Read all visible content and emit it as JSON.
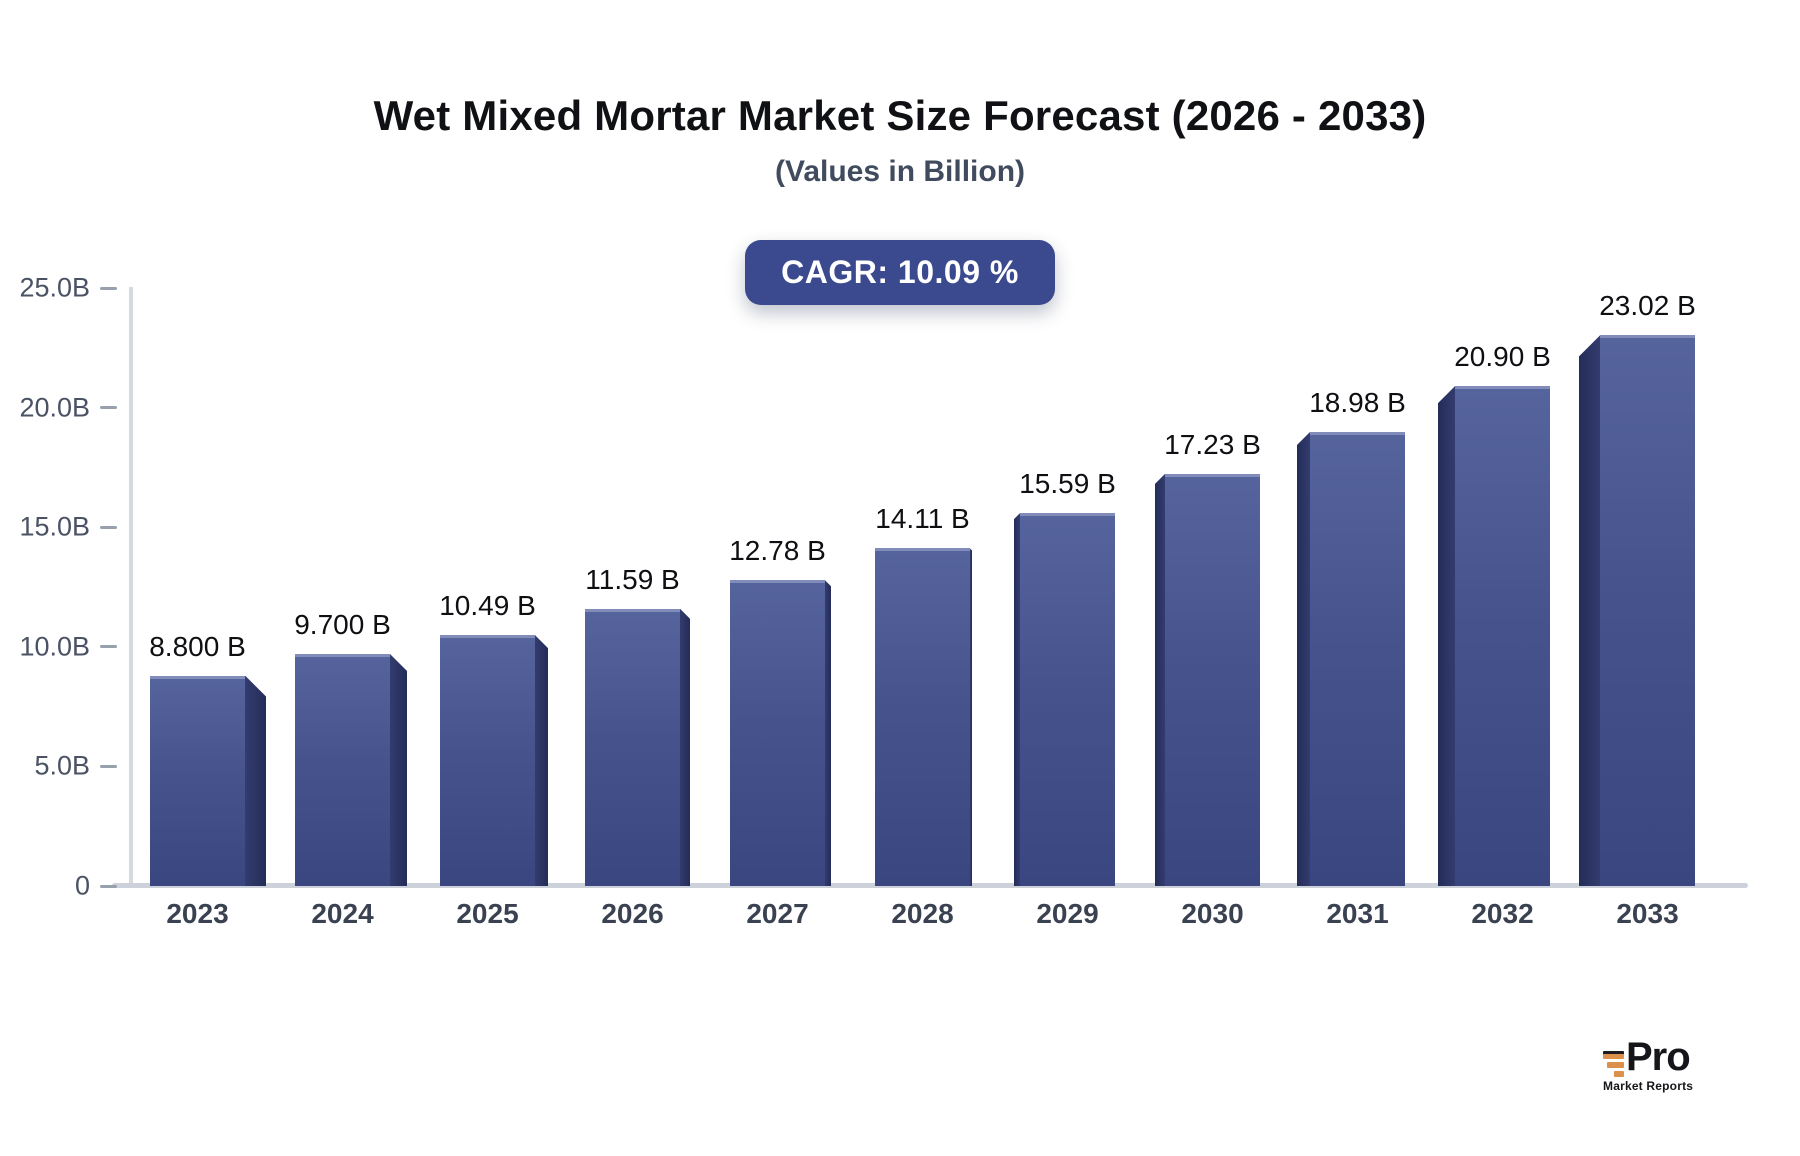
{
  "header": {
    "title": "Wet Mixed Mortar Market Size Forecast (2026 - 2033)",
    "subtitle": "(Values in Billion)",
    "cagr_badge": "CAGR: 10.09 %"
  },
  "chart_data": {
    "type": "bar",
    "title": "Wet Mixed Mortar Market Size Forecast (2026 - 2033)",
    "subtitle": "(Values in Billion)",
    "annotation": "CAGR: 10.09 %",
    "categories": [
      "2023",
      "2024",
      "2025",
      "2026",
      "2027",
      "2028",
      "2029",
      "2030",
      "2031",
      "2032",
      "2033"
    ],
    "values": [
      8.8,
      9.7,
      10.49,
      11.59,
      12.78,
      14.11,
      15.59,
      17.23,
      18.98,
      20.9,
      23.02
    ],
    "value_labels": [
      "8.800 B",
      "9.700 B",
      "10.49 B",
      "11.59 B",
      "12.78 B",
      "14.11 B",
      "15.59 B",
      "17.23 B",
      "18.98 B",
      "20.90 B",
      "23.02 B"
    ],
    "xlabel": "",
    "ylabel": "",
    "ylim": [
      0,
      25
    ],
    "yticks": [
      {
        "label": "25.0B",
        "value": 25
      },
      {
        "label": "20.0B",
        "value": 20
      },
      {
        "label": "15.0B",
        "value": 15
      },
      {
        "label": "10.0B",
        "value": 10
      },
      {
        "label": "5.0B",
        "value": 5
      },
      {
        "label": "0",
        "value": 0
      }
    ],
    "grid": false,
    "legend": false,
    "style": "3d-perspective-bars"
  },
  "branding": {
    "logo_text": "Pro",
    "logo_subtext": "Market Reports"
  },
  "colors": {
    "badge_bg": "#3b4a8e",
    "badge_text": "#ffffff",
    "bar_face_top": "#56649d",
    "bar_face_bottom": "#394680",
    "bar_side_dark": "#242c59",
    "axis_line": "#d6d9e0",
    "baseline": "#ccd1da",
    "tick_mark": "#98a0ae",
    "ytick_label": "#4a5263",
    "year_label": "#3a4150",
    "value_label": "#0e0f12",
    "title_text": "#101114",
    "subtitle_text": "#414b5e",
    "logo_orange": "#dd8f4c",
    "logo_black": "#16161a"
  }
}
